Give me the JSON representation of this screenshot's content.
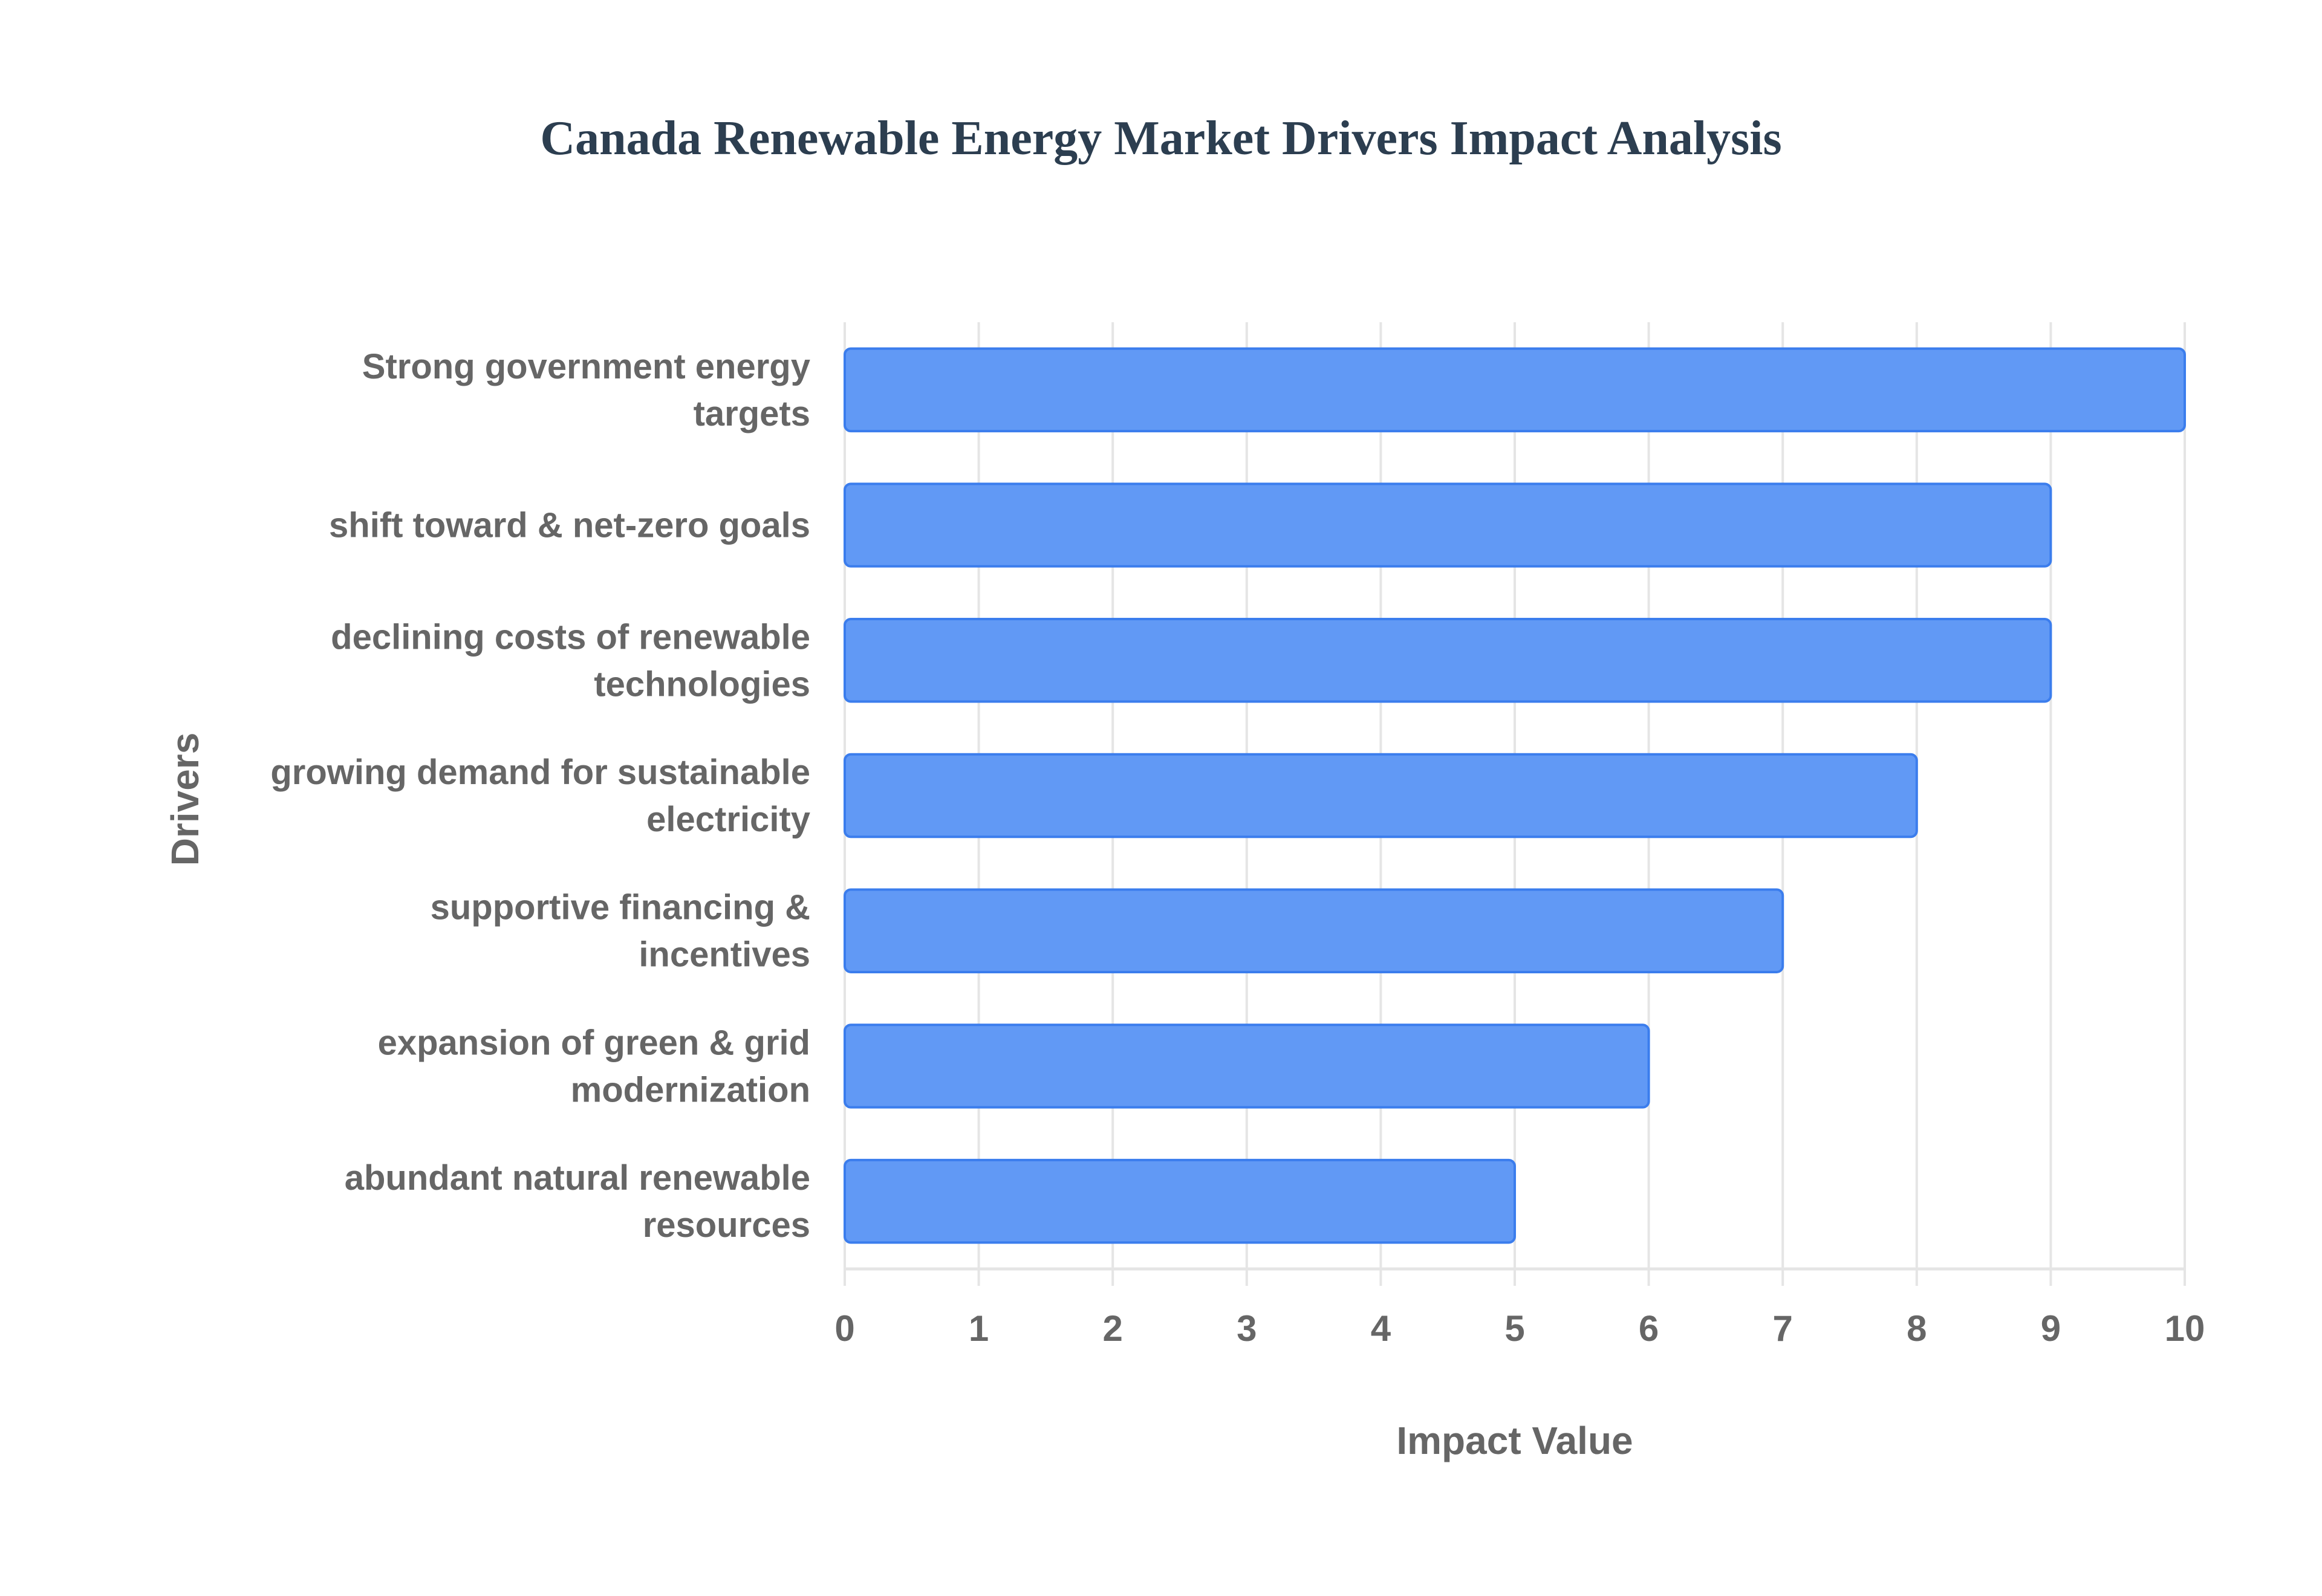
{
  "chart_data": {
    "type": "bar",
    "orientation": "horizontal",
    "title": "Canada Renewable Energy Market Drivers Impact Analysis",
    "xlabel": "Impact Value",
    "ylabel": "Drivers",
    "xlim": [
      0,
      10
    ],
    "xticks": [
      "0",
      "1",
      "2",
      "3",
      "4",
      "5",
      "6",
      "7",
      "8",
      "9",
      "10"
    ],
    "grid": true,
    "categories": [
      [
        "Strong government energy",
        "targets"
      ],
      [
        "shift toward & net-zero goals"
      ],
      [
        "declining costs of renewable",
        "technologies"
      ],
      [
        "growing demand for sustainable",
        "electricity"
      ],
      [
        "supportive financing &",
        "incentives"
      ],
      [
        "expansion of green & grid",
        "modernization"
      ],
      [
        "abundant natural renewable",
        "resources"
      ]
    ],
    "values": [
      10,
      9,
      9,
      8,
      7,
      6,
      5
    ],
    "colors": {
      "bar": "#6199f5",
      "bar_border": "#3b7ded",
      "grid": "#e5e5e5",
      "text": "#666666",
      "title": "#2c3e50"
    }
  }
}
